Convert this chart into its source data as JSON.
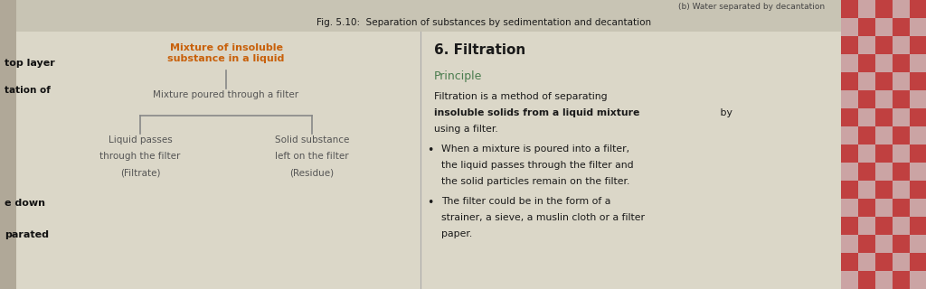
{
  "bg_color": "#e8e4d8",
  "left_panel_bg": "#d6d0c0",
  "fig_caption": "Fig. 5.10:  Separation of substances by sedimentation and decantation",
  "fig_caption_small": "(b) Water separated by decantation",
  "section_title": "6. Filtration",
  "subsection_title": "Principle",
  "para1": "Filtration is a method of separating\ninsoluble solids from a liquid mixture by\nusing a filter.",
  "para1_bold": "insoluble solids from a liquid mixture",
  "bullet1": "When a mixture is poured into a filter,\nthe liquid passes through the filter and\nthe solid particles remain on the filter.",
  "bullet2": "The filter could be in the form of a\nstrainer, a sieve, a muslin cloth or a filter\npaper.",
  "diagram_title": "Mixture of insoluble\nsubstance in a liquid",
  "diagram_subtitle": "Mixture poured through a filter",
  "left_label_line1": "Liquid passes",
  "left_label_line2": "through the filter",
  "left_label_line3": "(Filtrate)",
  "right_label_line1": "Solid substance",
  "right_label_line2": "left on the filter",
  "right_label_line3": "(Residue)",
  "orange_color": "#c8600a",
  "green_color": "#4a7c4e",
  "dark_text": "#1a1a1a",
  "medium_text": "#333333",
  "diagram_text_color": "#555555",
  "left_sidebar_color": "#b0a898",
  "right_sidebar_color": "#c04040",
  "caption_color": "#444444"
}
